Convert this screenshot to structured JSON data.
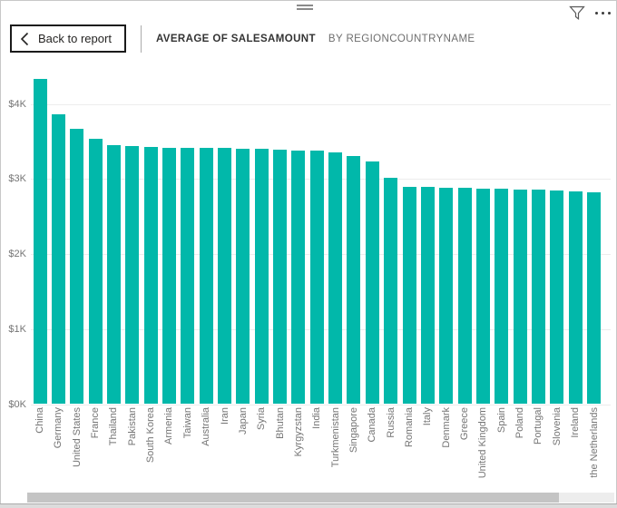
{
  "header": {
    "back_label": "Back to report",
    "title": "AVERAGE OF SALESAMOUNT",
    "subtitle": "BY REGIONCOUNTRYNAME",
    "icons": {
      "drag_handle": "drag-handle",
      "filter": "filter-icon",
      "more_options": "more-options-icon",
      "back_chevron": "chevron-left-icon"
    }
  },
  "colors": {
    "bar": "#01B8AA",
    "gridline": "#ececec",
    "axis_text": "#757575"
  },
  "chart_data": {
    "type": "bar",
    "title": "AVERAGE OF SALESAMOUNT BY REGIONCOUNTRYNAME",
    "xlabel": "",
    "ylabel": "",
    "ylim": [
      0,
      4400
    ],
    "grid": true,
    "y_ticks": [
      {
        "label": "$0K",
        "value": 0
      },
      {
        "label": "$1K",
        "value": 1000
      },
      {
        "label": "$2K",
        "value": 2000
      },
      {
        "label": "$3K",
        "value": 3000
      },
      {
        "label": "$4K",
        "value": 4000
      }
    ],
    "categories": [
      "China",
      "Germany",
      "United States",
      "France",
      "Thailand",
      "Pakistan",
      "South Korea",
      "Armenia",
      "Taiwan",
      "Australia",
      "Iran",
      "Japan",
      "Syria",
      "Bhutan",
      "Kyrgyzstan",
      "India",
      "Turkmenistan",
      "Singapore",
      "Canada",
      "Russia",
      "Romania",
      "Italy",
      "Denmark",
      "Greece",
      "United Kingdom",
      "Spain",
      "Poland",
      "Portugal",
      "Slovenia",
      "Ireland",
      "the Netherlands"
    ],
    "values": [
      4330,
      3860,
      3670,
      3540,
      3450,
      3440,
      3425,
      3420,
      3418,
      3415,
      3410,
      3405,
      3400,
      3390,
      3380,
      3375,
      3350,
      3310,
      3230,
      3020,
      2895,
      2890,
      2885,
      2880,
      2875,
      2870,
      2865,
      2855,
      2850,
      2840,
      2820
    ]
  }
}
